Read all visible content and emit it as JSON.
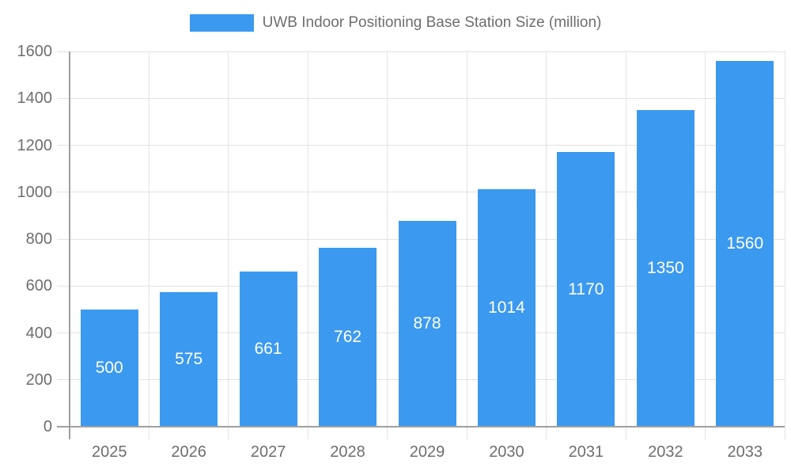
{
  "chart_data": {
    "type": "bar",
    "title": "UWB Indoor Positioning Base Station Size (million)",
    "categories": [
      "2025",
      "2026",
      "2027",
      "2028",
      "2029",
      "2030",
      "2031",
      "2032",
      "2033"
    ],
    "values": [
      500,
      575,
      661,
      762,
      878,
      1014,
      1170,
      1350,
      1560
    ],
    "xlabel": "",
    "ylabel": "",
    "ylim": [
      0,
      1600
    ],
    "y_ticks": [
      0,
      200,
      400,
      600,
      800,
      1000,
      1200,
      1400,
      1600
    ],
    "grid": true,
    "legend_position": "top-center",
    "bar_label_position": "inside-center",
    "colors": {
      "bar": "#3B99EF",
      "axis_text": "#6E6E6E",
      "grid_line": "#E3E3E3",
      "axis_line": "#A0A0A0",
      "bar_label": "#FFFFFF",
      "background": "#FFFFFF"
    }
  }
}
